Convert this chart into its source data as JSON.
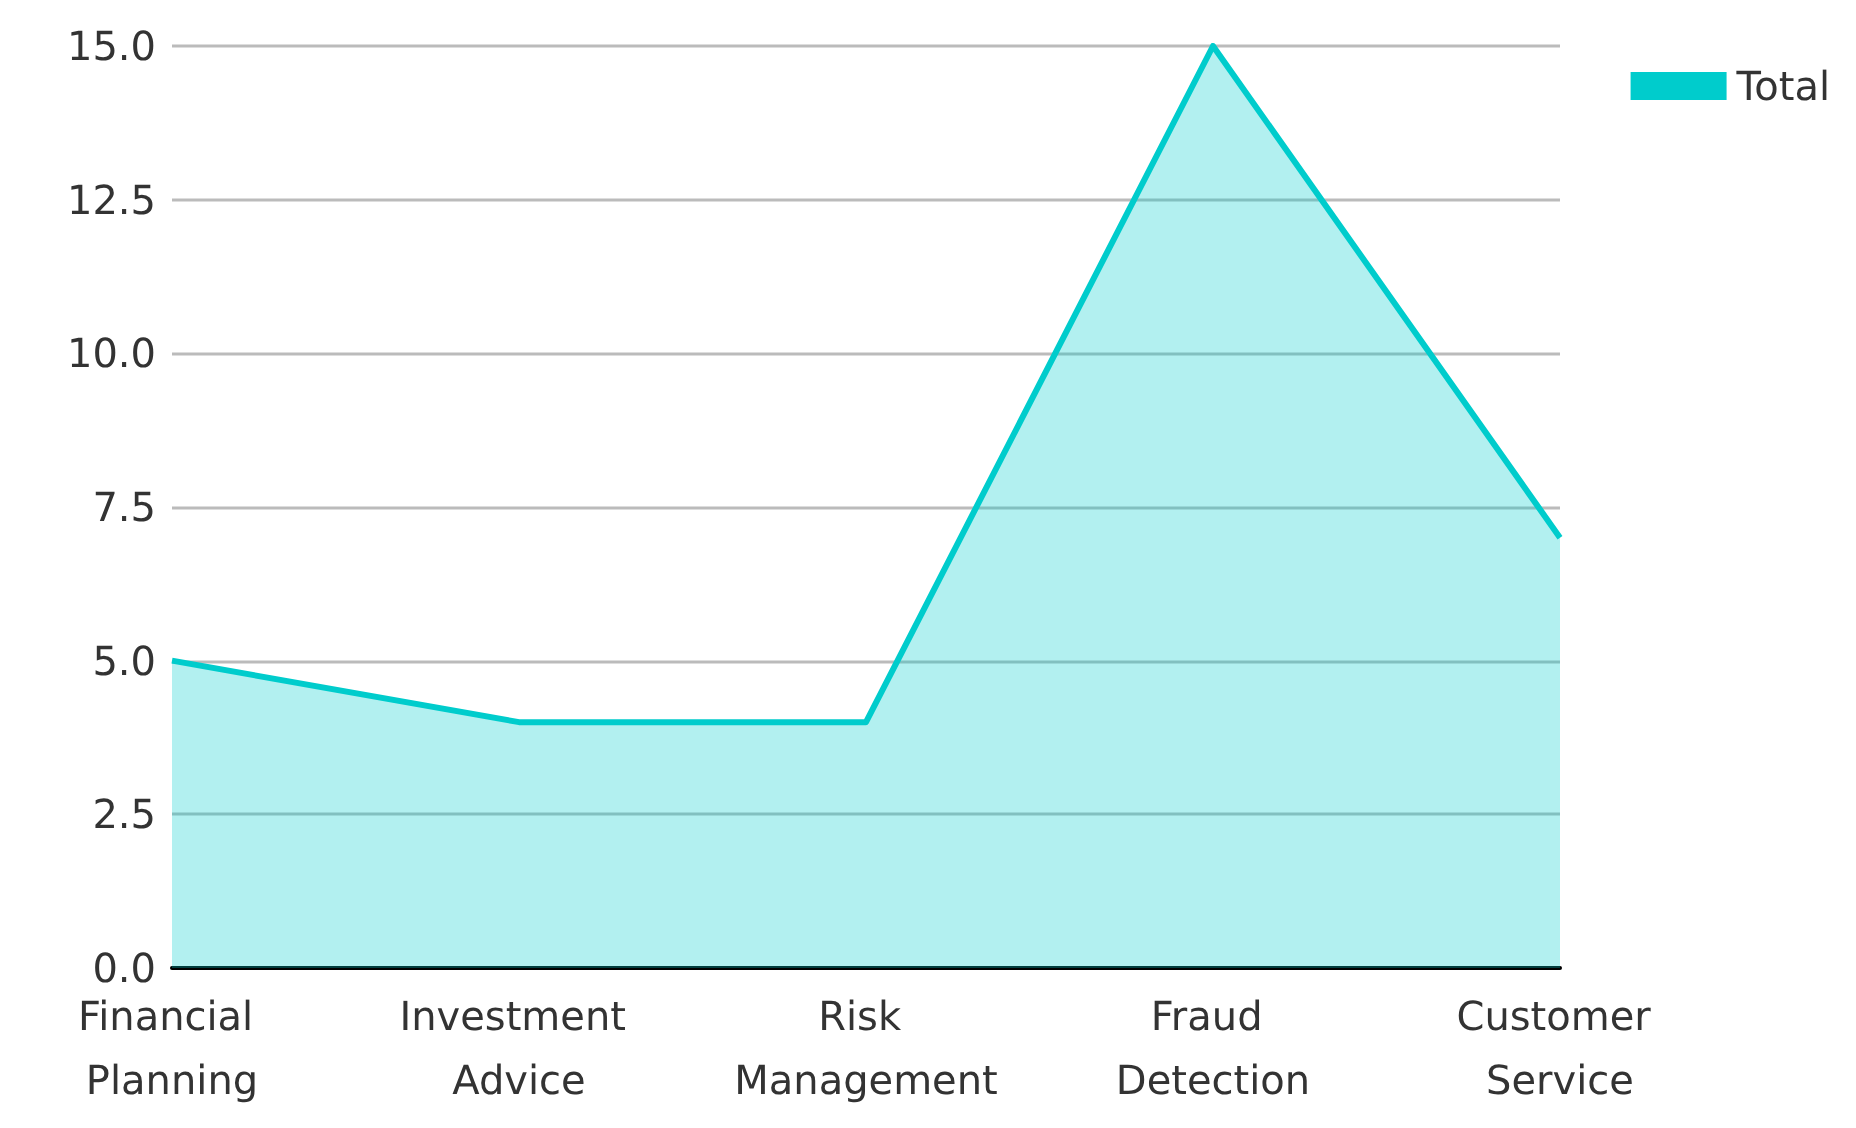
{
  "chart_data": {
    "type": "area",
    "categories": [
      "Financial Planning",
      "Investment Advice",
      "Risk Management",
      "Fraud Detection",
      "Customer Service"
    ],
    "series": [
      {
        "name": "Total",
        "color": "#00cccc",
        "values": [
          5,
          4,
          4,
          15,
          7
        ]
      }
    ],
    "ylim": [
      0,
      15
    ],
    "yticks": [
      {
        "value": 0,
        "label": "0.0"
      },
      2.5,
      {
        "value": 5,
        "label": "5.0"
      },
      7.5,
      {
        "value": 10,
        "label": "10.0"
      },
      12.5,
      {
        "value": 15,
        "label": "15.0"
      }
    ],
    "grid": "y",
    "legend": "top right",
    "marker": "none"
  }
}
